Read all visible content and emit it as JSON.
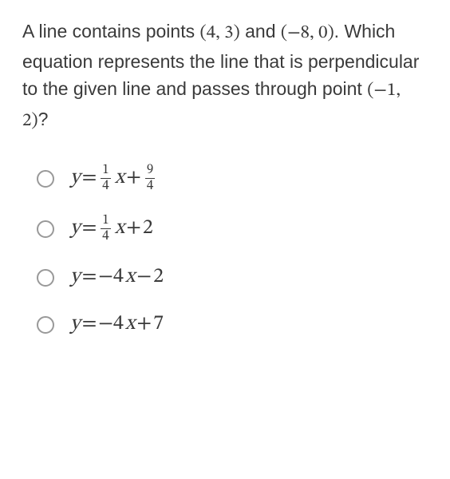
{
  "question": {
    "parts": [
      "A line contains points ",
      "(4, 3)",
      " and ",
      "(−8, 0)",
      ". Which equation represents the line that is perpendicular to the given line and passes through point ",
      "(−1, 2)",
      "?"
    ]
  },
  "options": [
    {
      "type": "frac_frac",
      "lhs": "y",
      "eq": " = ",
      "f1_num": "1",
      "f1_den": "4",
      "var": "x",
      "op": " + ",
      "f2_num": "9",
      "f2_den": "4"
    },
    {
      "type": "frac_const",
      "lhs": "y",
      "eq": " = ",
      "f1_num": "1",
      "f1_den": "4",
      "var": "x",
      "op": " + ",
      "c": "2"
    },
    {
      "type": "linear",
      "lhs": "y",
      "eq": " = ",
      "coef": "−4",
      "var": "x",
      "op": " − ",
      "c": "2"
    },
    {
      "type": "linear",
      "lhs": "y",
      "eq": " = ",
      "coef": "−4",
      "var": "x",
      "op": " + ",
      "c": "7"
    }
  ],
  "style": {
    "text_color": "#3a3a3a",
    "background": "#ffffff",
    "radio_border": "#999999",
    "question_fontsize": 23,
    "equation_fontsize": 26,
    "fraction_fontsize": 17
  }
}
